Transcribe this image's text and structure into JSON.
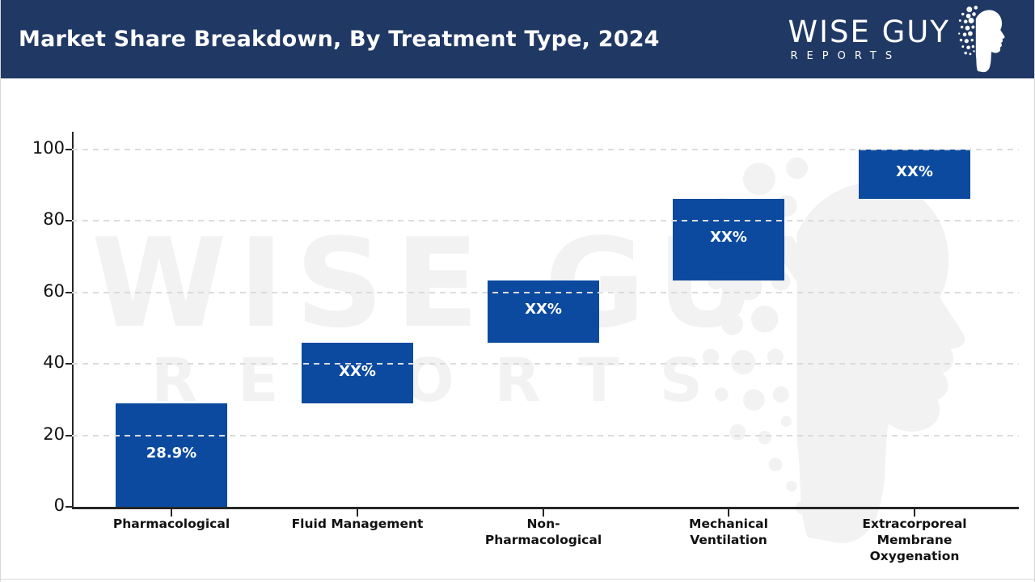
{
  "header": {
    "title": "Market Share Breakdown, By Treatment Type, 2024",
    "bg_color": "#203864",
    "logo": {
      "line1": "WISE GUY",
      "line2": "REPORTS"
    }
  },
  "watermark": {
    "line1": "WISE GUY",
    "line2": "REPORTS"
  },
  "chart_data": {
    "type": "bar",
    "subtype": "waterfall",
    "title": "Market Share Breakdown, By Treatment Type, 2024",
    "categories": [
      "Pharmacological",
      "Fluid Management",
      "Non-Pharmacological",
      "Mechanical Ventilation",
      "Extracorporeal Membrane Oxygenation"
    ],
    "series": [
      {
        "name": "Market share (%)",
        "segments": [
          {
            "category": "Pharmacological",
            "start": 0,
            "end": 28.9,
            "value": 28.9,
            "label": "28.9%"
          },
          {
            "category": "Fluid Management",
            "start": 28.9,
            "end": 45.9,
            "value": 17.0,
            "label": "XX%"
          },
          {
            "category": "Non-Pharmacological",
            "start": 45.9,
            "end": 63.3,
            "value": 17.4,
            "label": "XX%"
          },
          {
            "category": "Mechanical Ventilation",
            "start": 63.3,
            "end": 86.2,
            "value": 22.9,
            "label": "XX%"
          },
          {
            "category": "Extracorporeal Membrane Oxygenation",
            "start": 86.2,
            "end": 100,
            "value": 13.8,
            "label": "XX%"
          }
        ]
      }
    ],
    "ylim": [
      0,
      100
    ],
    "yticks": [
      0,
      20,
      40,
      60,
      80,
      100
    ],
    "xlabel": "",
    "ylabel": "",
    "legend": "none",
    "grid": {
      "horizontal": true,
      "style": "dashed",
      "color": "#dcdcdc",
      "above_bars": true
    },
    "bar_color": "#0b4a9f",
    "bar_label_color": "#ffffff",
    "axis_color": "#262626"
  }
}
